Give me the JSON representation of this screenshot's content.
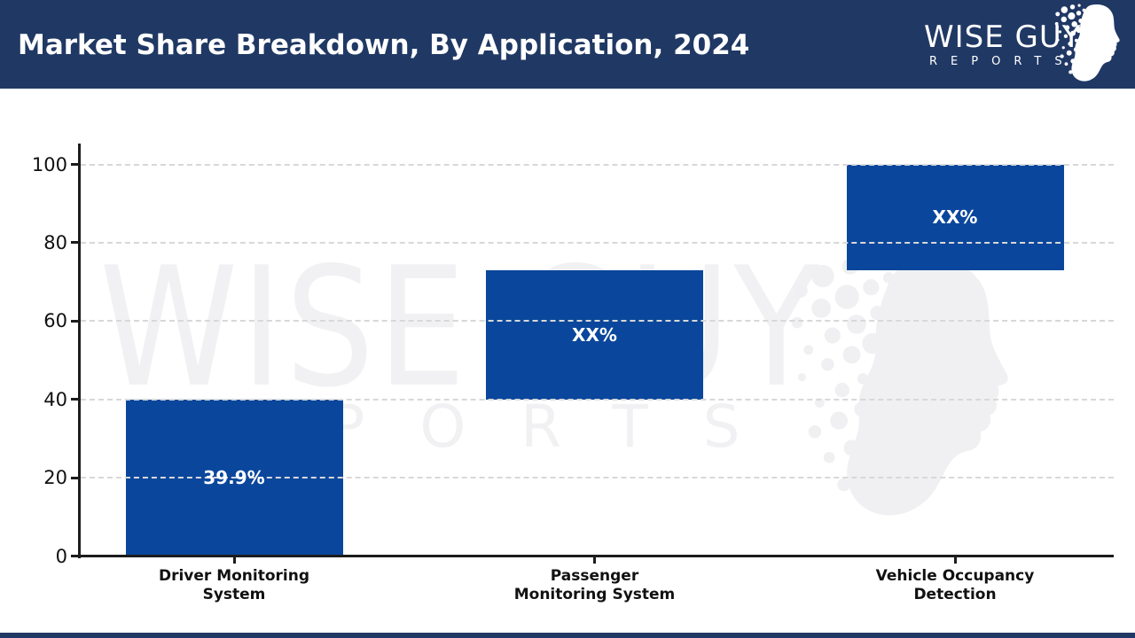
{
  "header": {
    "title": "Market Share Breakdown, By Application, 2024",
    "logo": {
      "name": "WISE GUY",
      "sub": "REPORTS"
    }
  },
  "watermark": {
    "line1": "WISE GUY",
    "line2": "REPORTS"
  },
  "chart_data": {
    "type": "bar",
    "subtype": "waterfall-segments",
    "title": "Market Share Breakdown, By Application, 2024",
    "unit": "%",
    "categories": [
      "Driver Monitoring System",
      "Passenger Monitoring System",
      "Vehicle Occupancy Detection"
    ],
    "category_lines": [
      [
        "Driver Monitoring",
        "System"
      ],
      [
        "Passenger",
        "Monitoring System"
      ],
      [
        "Vehicle Occupancy",
        "Detection"
      ]
    ],
    "segments": [
      {
        "category": "Driver Monitoring System",
        "start": 0,
        "end": 39.9,
        "label": "39.9%"
      },
      {
        "category": "Passenger Monitoring System",
        "start": 39.9,
        "end": 72.9,
        "label": "XX%"
      },
      {
        "category": "Vehicle Occupancy Detection",
        "start": 72.9,
        "end": 100,
        "label": "XX%"
      }
    ],
    "ylim": [
      0,
      100
    ],
    "yticks": [
      0,
      20,
      40,
      60,
      80,
      100
    ],
    "xlabel": "",
    "ylabel": "",
    "grid": "horizontal dashed",
    "legend": "none",
    "bar_color": "#0a479c",
    "bar_label_color": "#ffffff"
  },
  "colors": {
    "header_bg": "#203864",
    "footer_bg": "#203864",
    "bar": "#0a479c",
    "grid_line": "#d8d8d8",
    "axis": "#1c1c1c",
    "tick_text": "#111111",
    "watermark": "#f1f1f3"
  }
}
